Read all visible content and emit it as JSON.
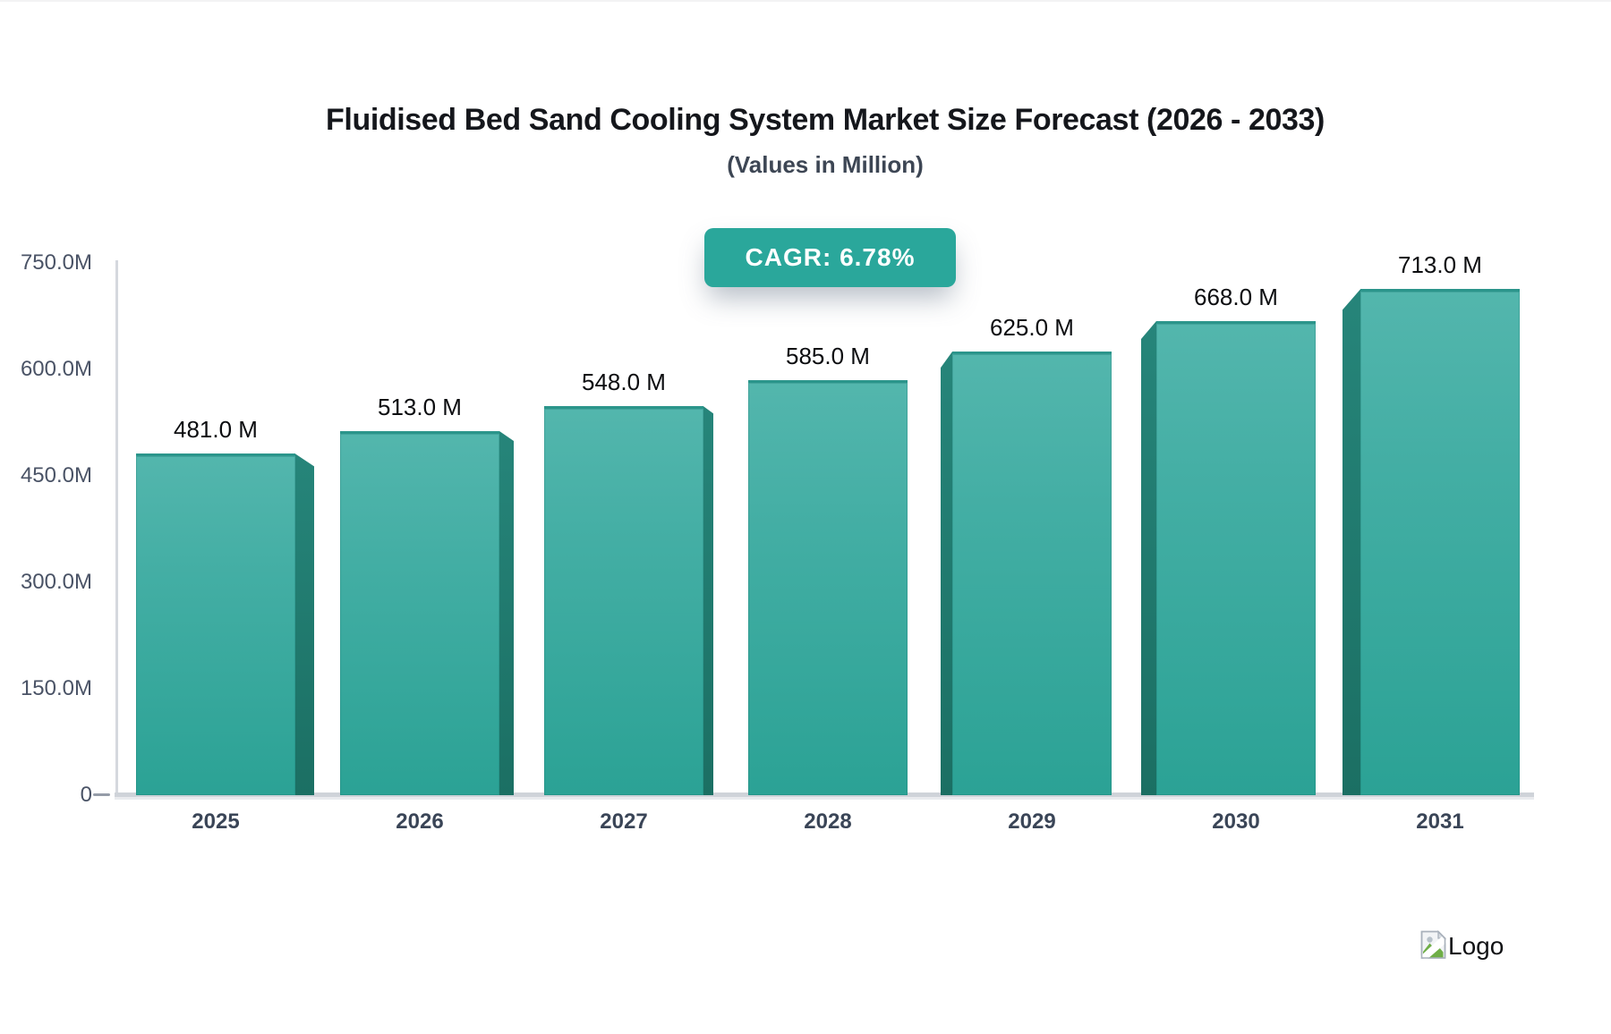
{
  "header": {
    "title": "Fluidised Bed Sand Cooling System Market Size Forecast (2026 - 2033)",
    "subtitle": "(Values in Million)"
  },
  "badge": {
    "label": "CAGR: 6.78%"
  },
  "footer": {
    "logo_text": "Logo"
  },
  "chart_data": {
    "type": "bar",
    "title": "Fluidised Bed Sand Cooling System Market Size Forecast (2026 - 2033)",
    "subtitle": "(Values in Million)",
    "unit": "Million",
    "categories": [
      "2025",
      "2026",
      "2027",
      "2028",
      "2029",
      "2030",
      "2031"
    ],
    "values": [
      481,
      513,
      548,
      585,
      625,
      668,
      713
    ],
    "bar_labels": [
      "481.0 M",
      "513.0 M",
      "548.0 M",
      "585.0 M",
      "625.0 M",
      "668.0 M",
      "713.0 M"
    ],
    "y_ticks": [
      {
        "label": "750.0M",
        "value": 750
      },
      {
        "label": "600.0M",
        "value": 600
      },
      {
        "label": "450.0M",
        "value": 450
      },
      {
        "label": "300.0M",
        "value": 300
      },
      {
        "label": "150.0M",
        "value": 150
      },
      {
        "label": "0",
        "value": 0
      }
    ],
    "ylim": [
      0,
      750
    ],
    "grid": false,
    "legend": "none",
    "cagr_annotation": "CAGR: 6.78%",
    "colors": {
      "bar_face_top": "#53b6ad",
      "bar_face_bottom": "#2ba295",
      "bar_side": "#1f7d71",
      "badge_bg": "#2aa79b",
      "axis_text": "#4a5366",
      "year_text": "#3a4557",
      "value_text": "#0c0d10",
      "axis_line": "#d2d5db"
    }
  }
}
